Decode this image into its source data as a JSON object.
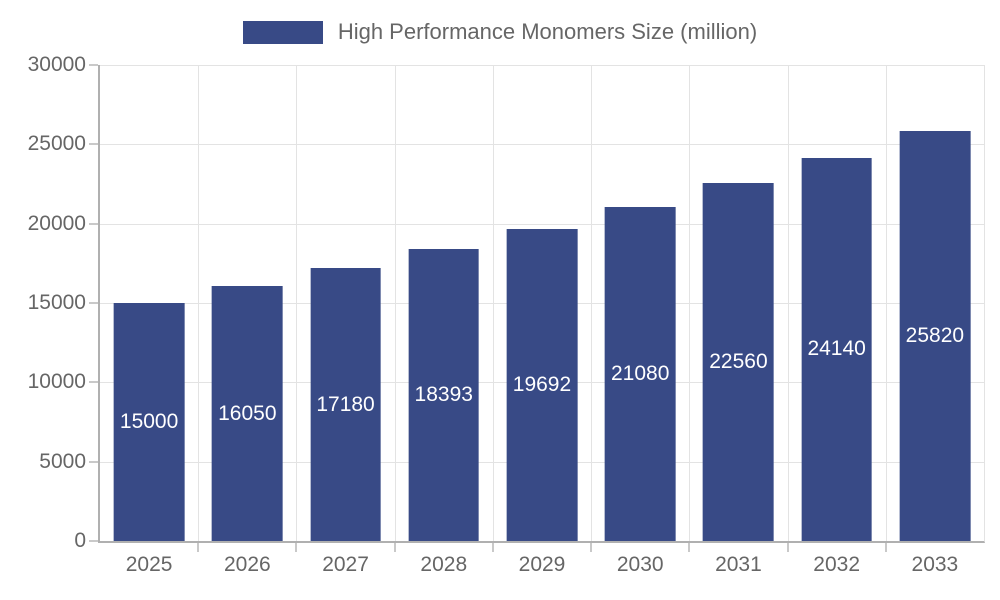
{
  "chart_data": {
    "type": "bar",
    "title": "High Performance Monomers Size (million)",
    "categories": [
      "2025",
      "2026",
      "2027",
      "2028",
      "2029",
      "2030",
      "2031",
      "2032",
      "2033"
    ],
    "values": [
      15000,
      16050,
      17180,
      18393,
      19692,
      21080,
      22560,
      24140,
      25820
    ],
    "xlabel": "",
    "ylabel": "",
    "ylim": [
      0,
      30000
    ],
    "yticks": [
      0,
      5000,
      10000,
      15000,
      20000,
      25000,
      30000
    ],
    "grid": true,
    "legend_position": "top-center",
    "value_label_position": "inside-center",
    "colors": {
      "bar": "#384A86",
      "value_label": "#FFFFFF",
      "axis_text": "#666666",
      "axis_line": "#B0B0B0",
      "gridline": "#E3E3E3",
      "background": "#FFFFFF"
    }
  }
}
